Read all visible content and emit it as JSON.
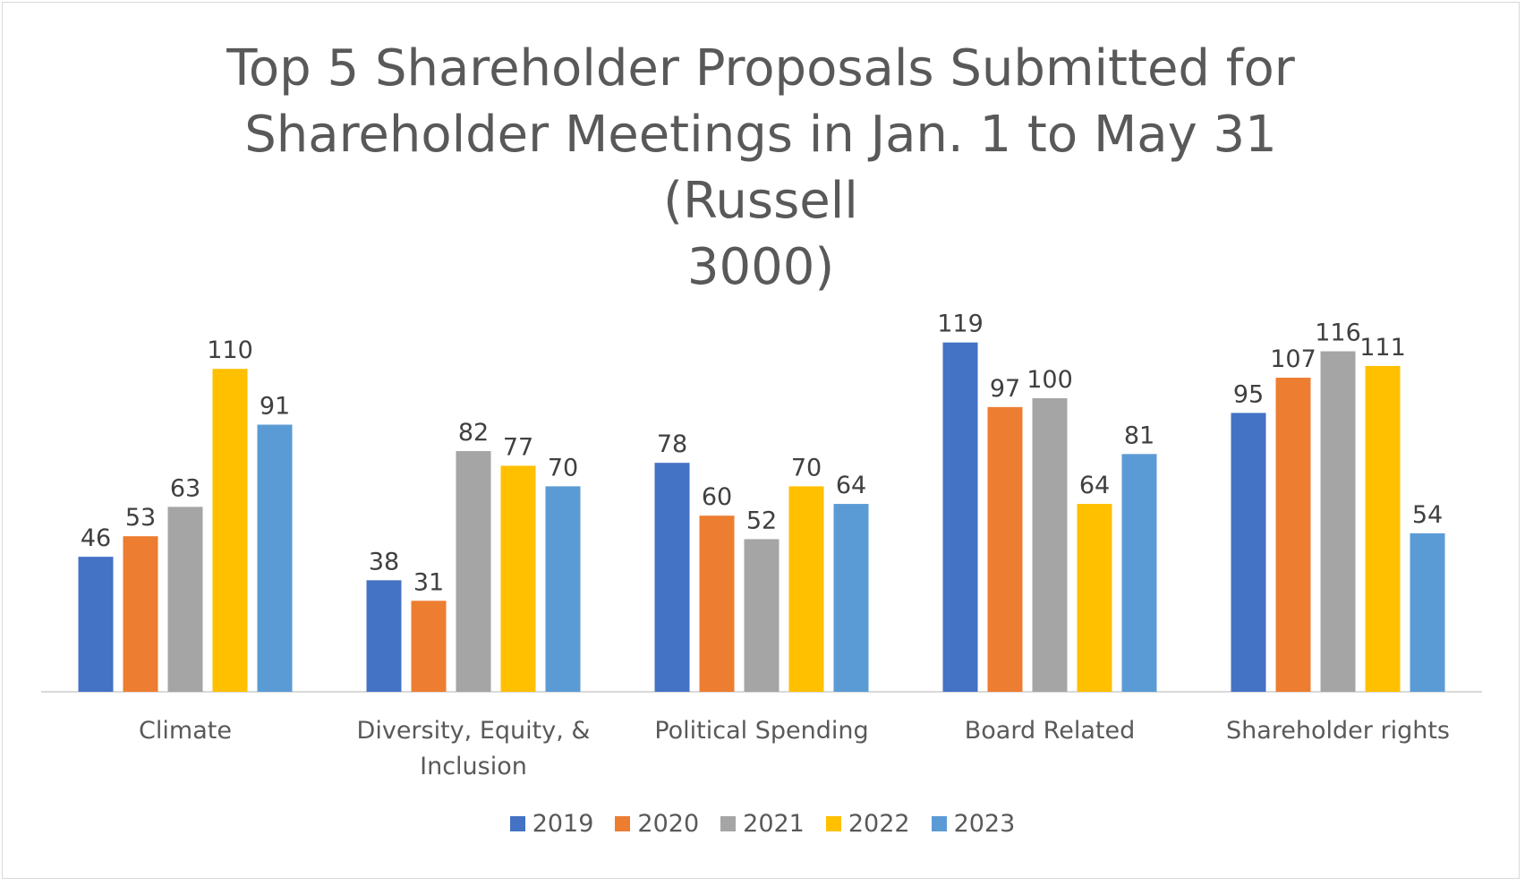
{
  "chart_data": {
    "type": "bar",
    "title": "Top 5 Shareholder Proposals Submitted for Shareholder Meetings in Jan. 1 to May 31 (Russell 3000)",
    "title_lines": [
      "Top 5 Shareholder Proposals Submitted for",
      "Shareholder Meetings in Jan. 1 to May 31 (Russell",
      "3000)"
    ],
    "categories": [
      "Climate",
      "Diversity, Equity, & Inclusion",
      "Political Spending",
      "Board Related",
      "Shareholder rights"
    ],
    "category_lines": [
      [
        "Climate"
      ],
      [
        "Diversity, Equity, &",
        "Inclusion"
      ],
      [
        "Political Spending"
      ],
      [
        "Board Related"
      ],
      [
        "Shareholder rights"
      ]
    ],
    "series": [
      {
        "name": "2019",
        "color": "#4472c4",
        "values": [
          46,
          38,
          78,
          119,
          95
        ]
      },
      {
        "name": "2020",
        "color": "#ed7d31",
        "values": [
          53,
          31,
          60,
          97,
          107
        ]
      },
      {
        "name": "2021",
        "color": "#a5a5a5",
        "values": [
          63,
          82,
          52,
          100,
          116
        ]
      },
      {
        "name": "2022",
        "color": "#ffc000",
        "values": [
          110,
          77,
          70,
          64,
          111
        ]
      },
      {
        "name": "2023",
        "color": "#5b9bd5",
        "values": [
          91,
          70,
          64,
          81,
          54
        ]
      }
    ],
    "xlabel": "",
    "ylabel": "",
    "ylim": [
      0,
      125
    ],
    "grid": false,
    "data_labels": true,
    "legend_position": "bottom"
  }
}
